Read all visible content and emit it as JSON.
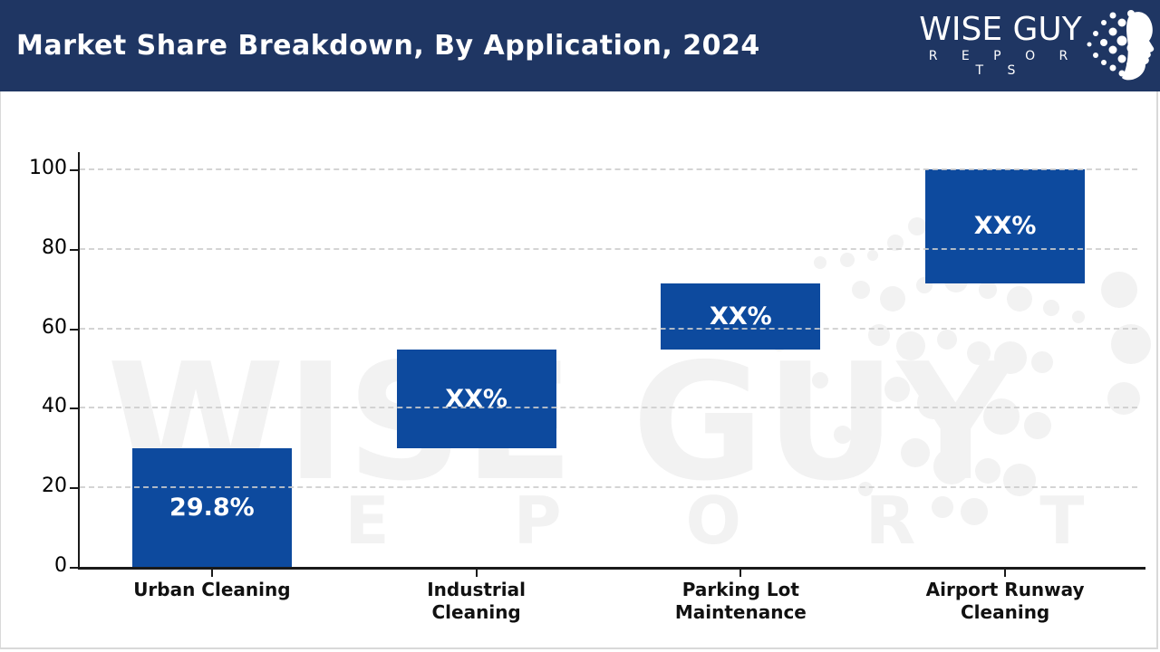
{
  "header": {
    "title": "Market Share Breakdown, By Application, 2024",
    "bg_color": "#1f3663",
    "logo": {
      "line1": "WISE GUY",
      "line2": "REPORTS",
      "line2_display": "R E P O R T S"
    }
  },
  "watermark": {
    "line1": "WISE GUY",
    "line2": "R E P O R T S"
  },
  "chart_data": {
    "type": "bar",
    "subtype": "floating-segment (waterfall-style market share breakdown)",
    "title": "Market Share Breakdown, By Application, 2024",
    "categories": [
      "Urban Cleaning",
      "Industrial Cleaning",
      "Parking Lot Maintenance",
      "Airport Runway Cleaning"
    ],
    "category_label_lines": [
      [
        "Urban Cleaning"
      ],
      [
        "Industrial",
        "Cleaning"
      ],
      [
        "Parking Lot",
        "Maintenance"
      ],
      [
        "Airport Runway",
        "Cleaning"
      ]
    ],
    "series": [
      {
        "name": "Market Share %",
        "ranges": [
          [
            0,
            29.8
          ],
          [
            29.8,
            54.7
          ],
          [
            54.7,
            71.3
          ],
          [
            71.3,
            100
          ]
        ],
        "segment_sizes": [
          29.8,
          24.9,
          16.6,
          28.7
        ]
      }
    ],
    "bar_labels": [
      "29.8%",
      "XX%",
      "XX%",
      "XX%"
    ],
    "bar_color": "#0d4a9e",
    "xlabel": "",
    "ylabel": "",
    "ylim": [
      0,
      100
    ],
    "yticks": [
      0,
      20,
      40,
      60,
      80,
      100
    ],
    "grid": "horizontal dashed, drawn over bars",
    "legend": "none"
  }
}
